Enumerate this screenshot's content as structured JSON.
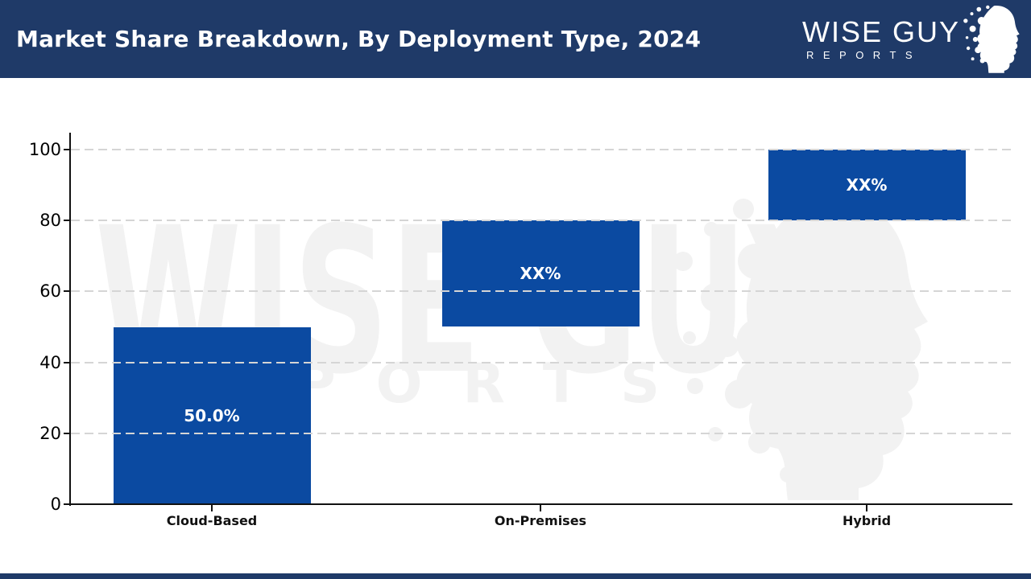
{
  "header": {
    "title": "Market Share Breakdown, By Deployment Type, 2024",
    "logo": {
      "line1": "WISE GUY",
      "line2": "REPORTS"
    }
  },
  "watermark": {
    "line1": "WISE GUY",
    "line2": "REPORTS"
  },
  "colors": {
    "navy": "#1F3A68",
    "bar_blue": "#0B4AA1",
    "grid": "#D5D5D5",
    "watermark": "#F2F2F2",
    "axis": "#111111"
  },
  "chart_data": {
    "type": "bar",
    "variant": "waterfall",
    "title": "Market Share Breakdown, By Deployment Type, 2024",
    "categories": [
      "Cloud-Based",
      "On-Premises",
      "Hybrid"
    ],
    "segments": [
      {
        "start": 0,
        "end": 50,
        "label": "50.0%"
      },
      {
        "start": 50,
        "end": 80,
        "label": "XX%"
      },
      {
        "start": 80,
        "end": 100,
        "label": "XX%"
      }
    ],
    "yticks": [
      0,
      20,
      40,
      60,
      80,
      100
    ],
    "ylim": [
      0,
      100
    ],
    "grid": "horizontal-dashed",
    "legend": "none"
  }
}
